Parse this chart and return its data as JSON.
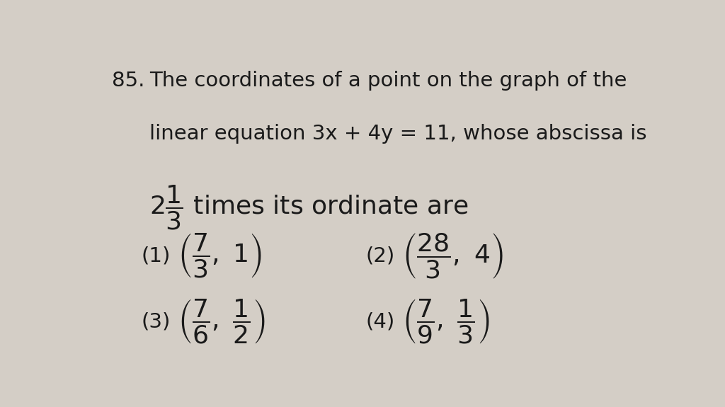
{
  "background_color": "#d4cec6",
  "text_color": "#1a1a1a",
  "question_number": "85.",
  "question_line1": "The coordinates of a point on the graph of the",
  "question_line2": "linear equation 3x + 4y = 11, whose abscissa is",
  "mixed_number_line": "$2\\dfrac{1}{3}$ times its ordinate are",
  "opt1_label": "(1)",
  "opt1_expr": "$\\left(\\dfrac{7}{3},\\ 1\\right)$",
  "opt2_label": "(2)",
  "opt2_expr": "$\\left(\\dfrac{28}{3},\\ 4\\right)$",
  "opt3_label": "(3)",
  "opt3_expr": "$\\left(\\dfrac{7}{6},\\ \\dfrac{1}{2}\\right)$",
  "opt4_label": "(4)",
  "opt4_expr": "$\\left(\\dfrac{7}{9},\\ \\dfrac{1}{3}\\right)$",
  "font_size_question": 21,
  "font_size_options": 26,
  "font_size_mixed": 26
}
